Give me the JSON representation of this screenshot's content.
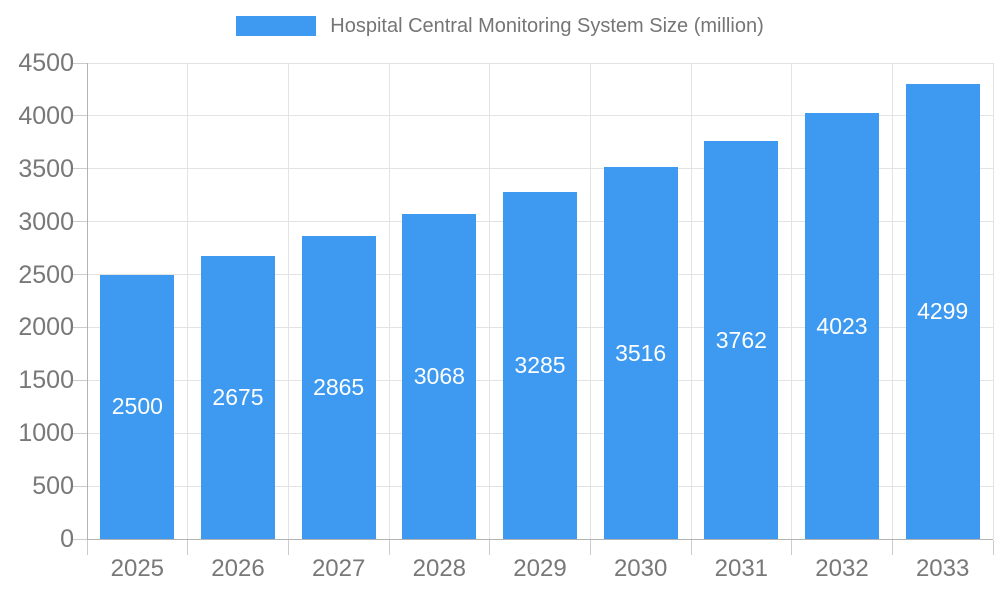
{
  "chart_data": {
    "type": "bar",
    "title": "Hospital Central Monitoring System Size (million)",
    "categories": [
      "2025",
      "2026",
      "2027",
      "2028",
      "2029",
      "2030",
      "2031",
      "2032",
      "2033"
    ],
    "series": [
      {
        "name": "Hospital Central Monitoring System Size (million)",
        "values": [
          2500,
          2675,
          2865,
          3068,
          3285,
          3516,
          3762,
          4023,
          4299
        ]
      }
    ],
    "bar_labels": [
      "2500",
      "2675",
      "2865",
      "3068",
      "3285",
      "3516",
      "3762",
      "4023",
      "4299"
    ],
    "ylabel": "",
    "xlabel": "",
    "ylim": [
      0,
      4500
    ],
    "ytick_step": 500,
    "ytick_labels": [
      "0",
      "500",
      "1000",
      "1500",
      "2000",
      "2500",
      "3000",
      "3500",
      "4000",
      "4500"
    ],
    "grid": true,
    "legend_position": "top-center",
    "bar_labels_inside": "vertical-center",
    "colors": {
      "bar_fill": "#3D9AF0",
      "bar_label_text": "#ffffff",
      "axis_line": "#b3b3b3",
      "tick_line": "#cccccc",
      "grid_line": "#e3e3e3",
      "tick_text": "#787878",
      "legend_text": "#757575",
      "background": "#ffffff"
    }
  }
}
